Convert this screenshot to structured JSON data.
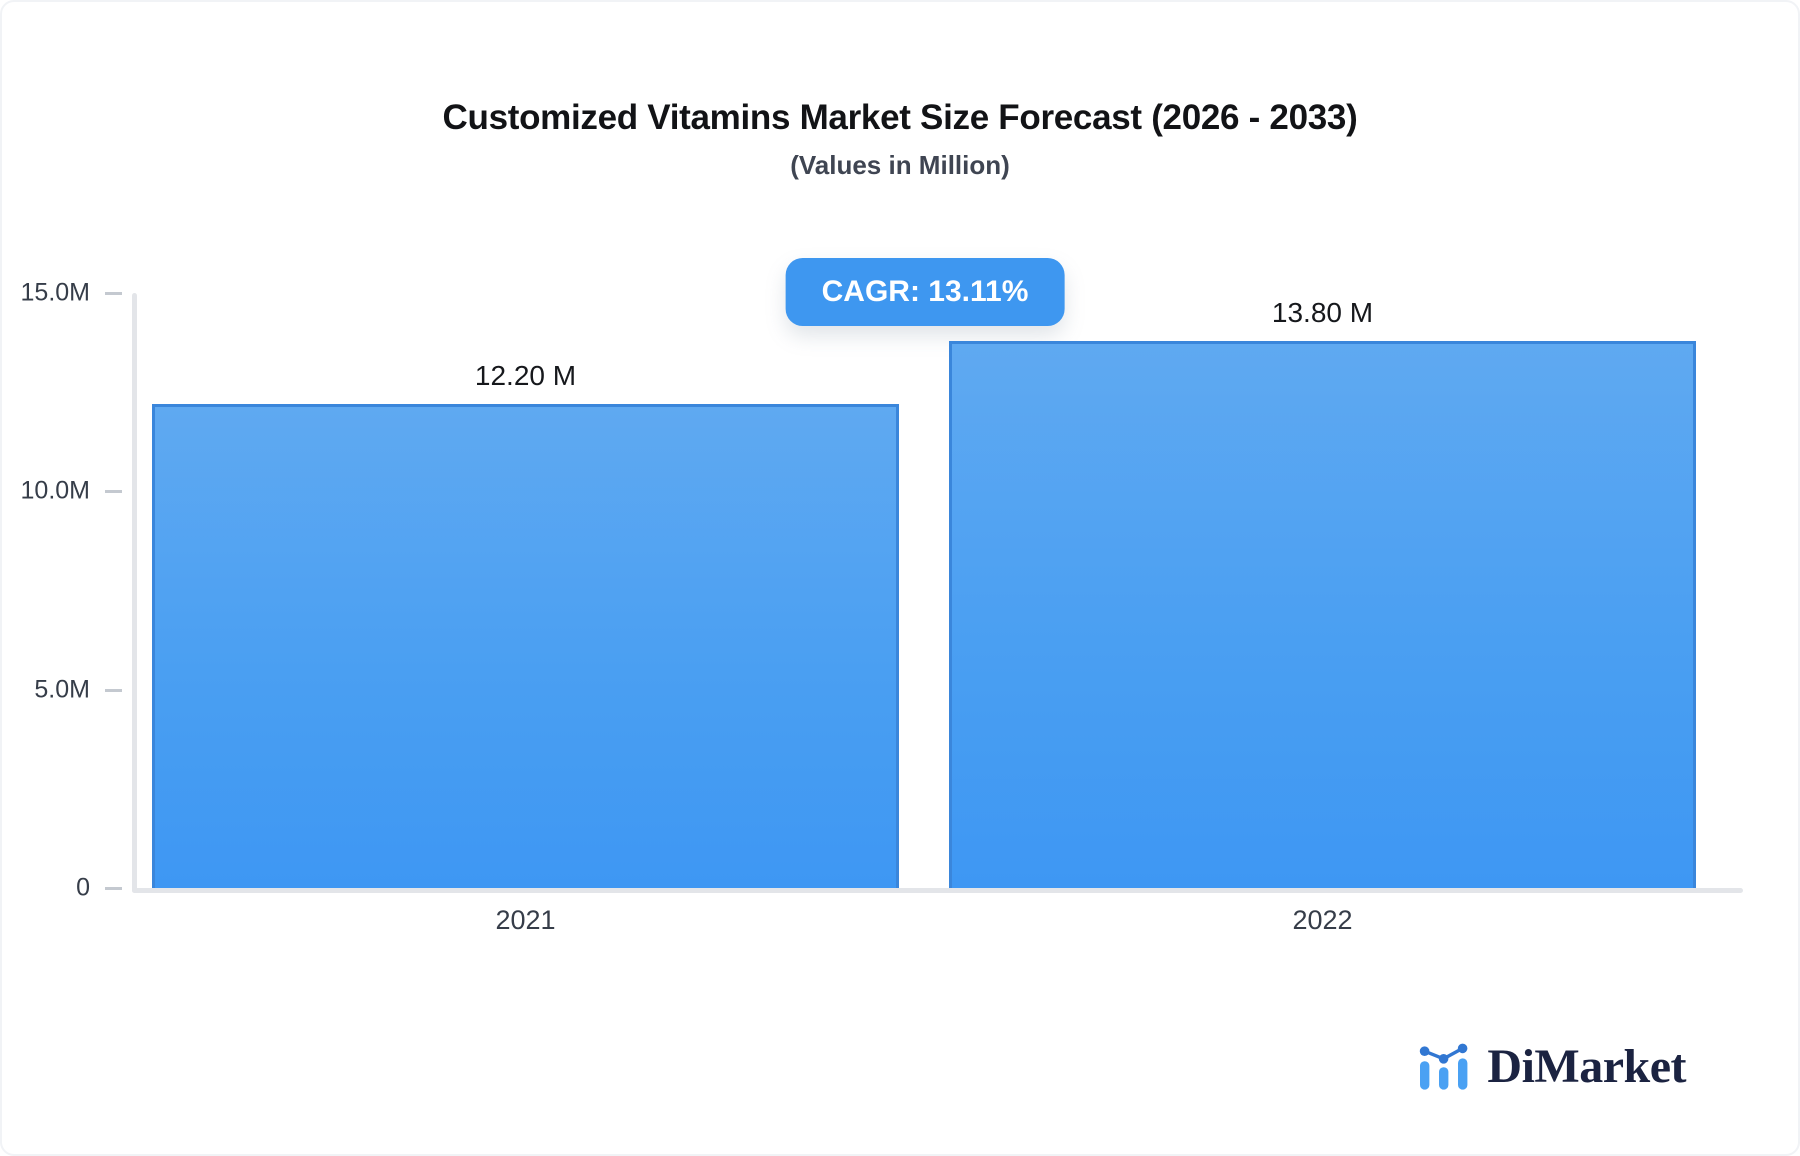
{
  "header": {
    "title": "Customized Vitamins Market Size Forecast (2026 - 2033)",
    "subtitle": "(Values in Million)"
  },
  "badge": {
    "label": "CAGR: 13.11%",
    "color": "#3e97f0"
  },
  "chart_data": {
    "type": "bar",
    "categories": [
      "2021",
      "2022"
    ],
    "values": [
      12.2,
      13.8
    ],
    "data_labels": [
      "12.20 M",
      "13.80 M"
    ],
    "title": "Customized Vitamins Market Size Forecast (2026 - 2033)",
    "subtitle": "(Values in Million)",
    "xlabel": "",
    "ylabel": "",
    "ylim": [
      0,
      15
    ],
    "y_ticks": [
      {
        "value": 0,
        "label": "0"
      },
      {
        "value": 5,
        "label": "5.0M"
      },
      {
        "value": 10,
        "label": "10.0M"
      },
      {
        "value": 15,
        "label": "15.0M"
      }
    ],
    "grid": false,
    "legend": false,
    "bar_color_top": "#5fa9f1",
    "bar_color_bottom": "#3e97f3",
    "bar_border_color": "#3a86db"
  },
  "brand": {
    "name": "DiMarket",
    "icon": "bar-chart-logo-icon",
    "navy": "#1b2341",
    "blue": "#4aa1f3",
    "accent_blue": "#3177d2"
  }
}
